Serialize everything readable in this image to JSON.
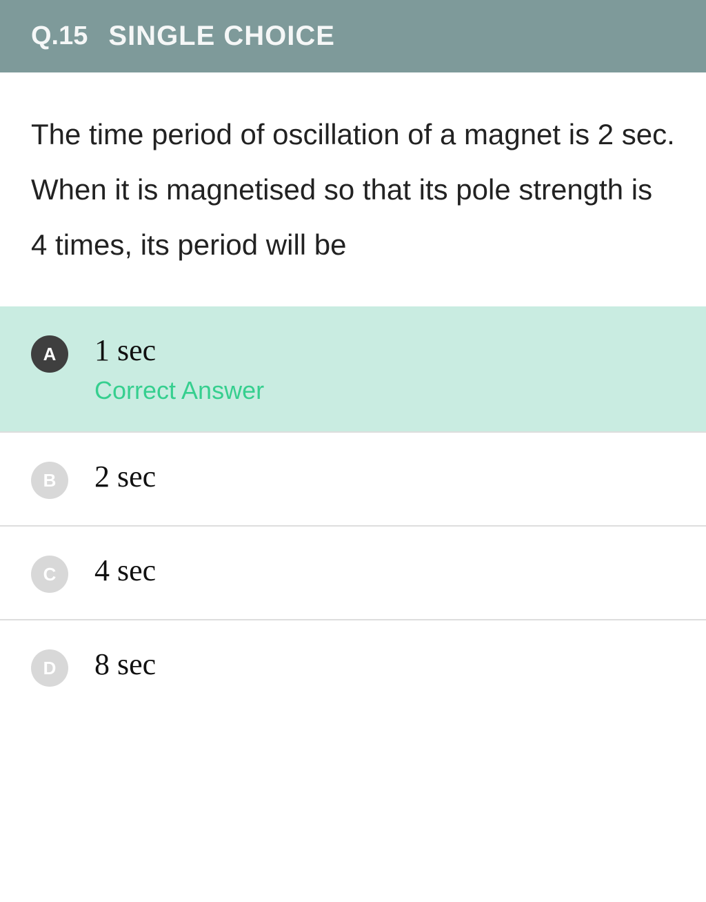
{
  "colors": {
    "header_bg": "#7e9a9a",
    "header_text": "#f5f7f7",
    "question_text": "#222222",
    "correct_bg": "#c9ece1",
    "correct_label": "#36cf8f",
    "badge_selected_bg": "#3f3f3f",
    "badge_unselected_bg": "#d8d8d8",
    "badge_text": "#ffffff",
    "divider": "#dddddd",
    "option_text": "#111111"
  },
  "fonts": {
    "header_number_size": 38,
    "header_type_size": 40,
    "question_size": 42,
    "option_text_size": 44,
    "correct_label_size": 36,
    "badge_letter_size": 26
  },
  "header": {
    "question_number": "Q.15",
    "question_type": "SINGLE CHOICE"
  },
  "question": {
    "text": "The time period of oscillation of a magnet is 2 sec. When it is magnetised so that its pole strength is 4 times, its period will be"
  },
  "correct_answer_label": "Correct Answer",
  "options": [
    {
      "letter": "A",
      "text": "1 sec",
      "is_correct": true
    },
    {
      "letter": "B",
      "text": "2 sec",
      "is_correct": false
    },
    {
      "letter": "C",
      "text": "4 sec",
      "is_correct": false
    },
    {
      "letter": "D",
      "text": "8 sec",
      "is_correct": false
    }
  ]
}
